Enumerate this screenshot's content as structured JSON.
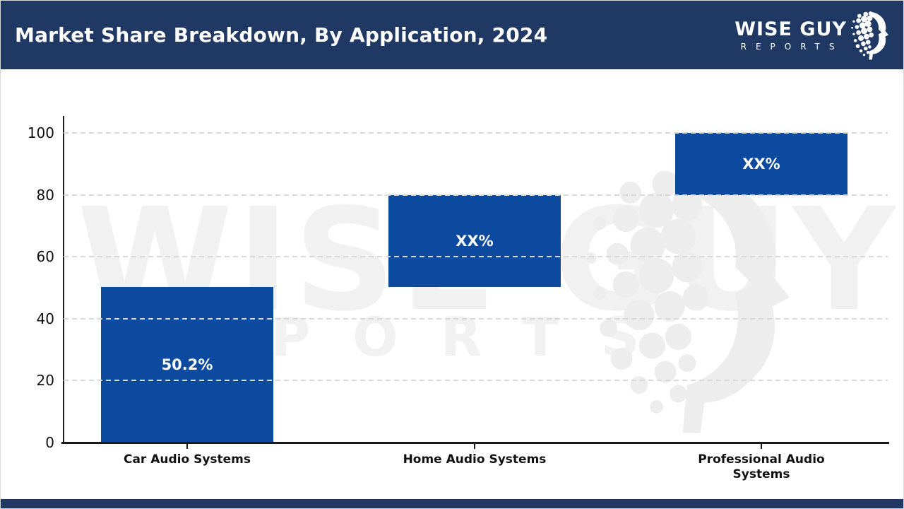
{
  "header": {
    "title": "Market Share Breakdown, By Application, 2024",
    "logo": {
      "wordmark": "WISE GUY",
      "sub": "REPORTS"
    }
  },
  "watermark": {
    "wordmark": "WISE GUY",
    "sub": "REPORTS"
  },
  "chart_data": {
    "type": "bar",
    "subtype": "floating-waterfall-bars",
    "title": "Market Share Breakdown, By Application, 2024",
    "categories": [
      "Car Audio Systems",
      "Home Audio Systems",
      "Professional Audio Systems"
    ],
    "segments": [
      {
        "category": "Car Audio Systems",
        "start": 0,
        "end": 50.2,
        "label": "50.2%"
      },
      {
        "category": "Home Audio Systems",
        "start": 50.2,
        "end": 80,
        "label": "XX%"
      },
      {
        "category": "Professional Audio Systems",
        "start": 80,
        "end": 100,
        "label": "XX%"
      }
    ],
    "yticks": [
      0,
      20,
      40,
      60,
      80,
      100
    ],
    "ylim": [
      0,
      100
    ],
    "xlabel": "",
    "ylabel": "",
    "grid": "horizontal-dashed",
    "legend": "none",
    "bar_color": "#0c4aa0",
    "value_label_color": "#ffffff"
  },
  "colors": {
    "header_bg": "#1f3864",
    "footer_bg": "#1f3864",
    "bar": "#0c4aa0",
    "gridline": "#d9d9d9",
    "axis": "#1a1a1a",
    "watermark": "#f1f1f1",
    "frame": "#d9d9d9"
  }
}
